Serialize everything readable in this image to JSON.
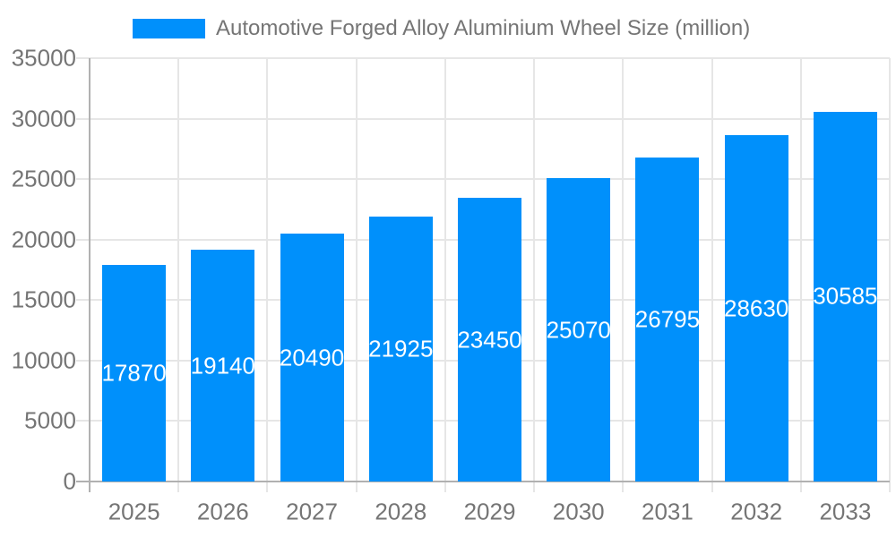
{
  "chart_data": {
    "type": "bar",
    "legend_label": "Automotive Forged Alloy Aluminium Wheel Size (million)",
    "legend_position": "top",
    "categories": [
      "2025",
      "2026",
      "2027",
      "2028",
      "2029",
      "2030",
      "2031",
      "2032",
      "2033"
    ],
    "values": [
      17870,
      19140,
      20490,
      21925,
      23450,
      25070,
      26795,
      28630,
      30585
    ],
    "value_labels": [
      "17870",
      "19140",
      "20490",
      "21925",
      "23450",
      "25070",
      "26795",
      "28630",
      "30585"
    ],
    "value_label_position": "inside-center",
    "xlabel": "",
    "ylabel": "",
    "ylim": [
      0,
      35000
    ],
    "yticks": [
      0,
      5000,
      10000,
      15000,
      20000,
      25000,
      30000,
      35000
    ],
    "ytick_labels": [
      "0",
      "5000",
      "10000",
      "15000",
      "20000",
      "25000",
      "30000",
      "35000"
    ],
    "grid": "horizontal and vertical light gray gridlines",
    "colors": {
      "bar": "#0090FB",
      "grid": "#e6e6e6",
      "axis": "#b1b1b1",
      "tick_text": "#757575",
      "legend_text": "#757575",
      "value_label_text": "#ffffff",
      "background": "#ffffff"
    }
  }
}
